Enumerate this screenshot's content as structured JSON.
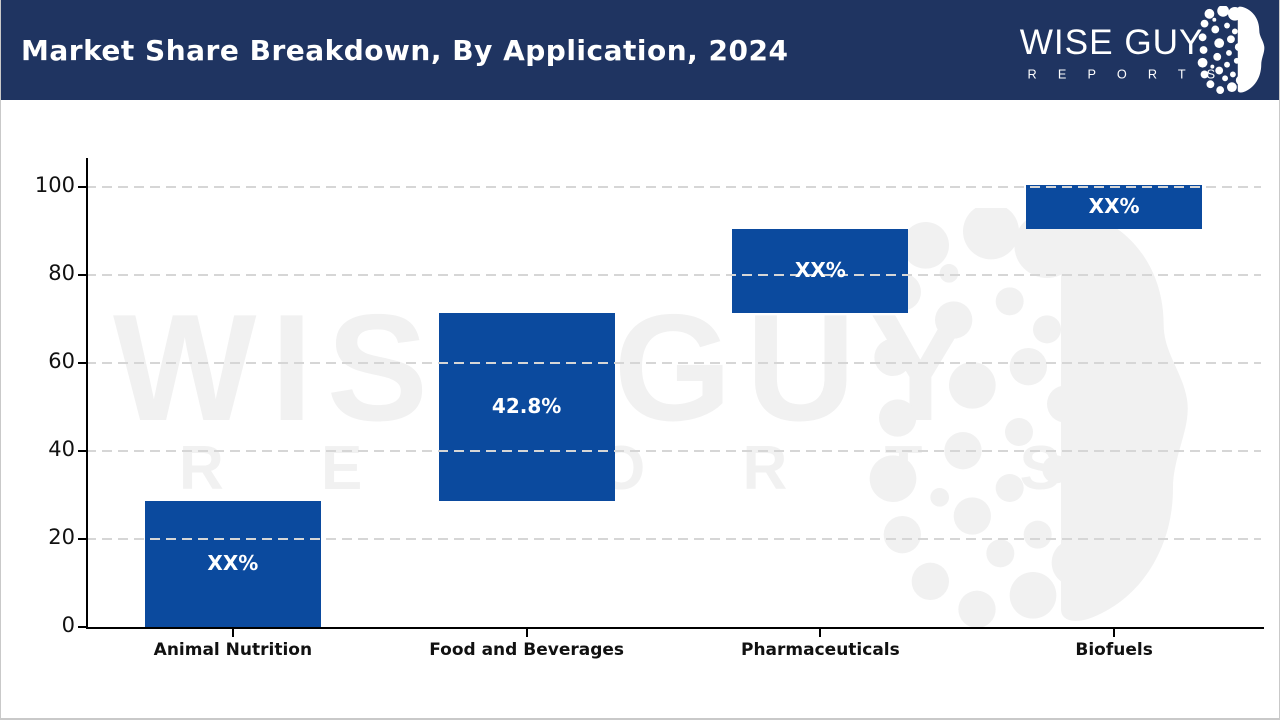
{
  "header": {
    "title": "Market Share Breakdown, By Application, 2024",
    "bg_color": "#1f3461",
    "logo": {
      "line1": "WISE GUY",
      "line2": "R E P O R T S"
    }
  },
  "watermark": {
    "line1": "WISE GUY",
    "line2": "R E P O R T S"
  },
  "chart_data": {
    "type": "bar",
    "subtype": "waterfall-floating-segments",
    "title": "Market Share Breakdown, By Application, 2024",
    "categories": [
      "Animal Nutrition",
      "Food and Beverages",
      "Pharmaceuticals",
      "Biofuels"
    ],
    "series": [
      {
        "name": "Market Share",
        "segments": [
          {
            "category": "Animal Nutrition",
            "start": 0,
            "end": 28.6,
            "label": "XX%"
          },
          {
            "category": "Food and Beverages",
            "start": 28.6,
            "end": 71.4,
            "label": "42.8%"
          },
          {
            "category": "Pharmaceuticals",
            "start": 71.4,
            "end": 90.5,
            "label": "XX%"
          },
          {
            "category": "Biofuels",
            "start": 90.5,
            "end": 100.5,
            "label": "XX%"
          }
        ]
      }
    ],
    "y_ticks": [
      "0",
      "20",
      "40",
      "60",
      "80",
      "100"
    ],
    "ylim": [
      0,
      106
    ],
    "xlabel": "",
    "ylabel": "",
    "grid": "horizontal-dashed",
    "legend_position": "none",
    "bar_color": "#0b4a9e",
    "bar_label_color": "#ffffff",
    "gridline_color": "#d6d6d6"
  }
}
